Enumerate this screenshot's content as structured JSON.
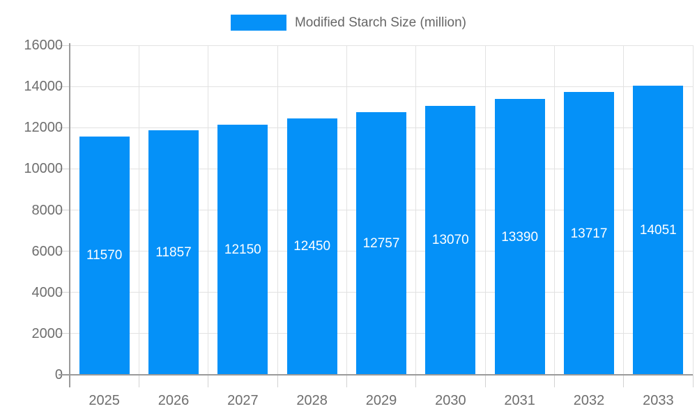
{
  "chart_data": {
    "type": "bar",
    "title": "",
    "legend": {
      "label": "Modified Starch Size (million)",
      "position": "top-center"
    },
    "categories": [
      "2025",
      "2026",
      "2027",
      "2028",
      "2029",
      "2030",
      "2031",
      "2032",
      "2033"
    ],
    "series": [
      {
        "name": "Modified Starch Size (million)",
        "values": [
          11570,
          11857,
          12150,
          12450,
          12757,
          13070,
          13390,
          13717,
          14051
        ]
      }
    ],
    "value_labels": [
      "11570",
      "11857",
      "12150",
      "12450",
      "12757",
      "13070",
      "13390",
      "13717",
      "14051"
    ],
    "value_label_position": "inside-center",
    "xlabel": "",
    "ylabel": "",
    "ylim": [
      0,
      16000
    ],
    "ytick_step": 2000,
    "ytick_labels": [
      "0",
      "2000",
      "4000",
      "6000",
      "8000",
      "10000",
      "12000",
      "14000",
      "16000"
    ],
    "grid": true
  },
  "colors": {
    "bar": "#0591f8",
    "bar_label_text": "#ffffff",
    "axis_line": "#9a9a9a",
    "gridline": "#e2e2e2",
    "tick": "#d2d2d2",
    "axis_text": "#6e6e6e",
    "legend_text": "#666666",
    "background": "#ffffff"
  }
}
